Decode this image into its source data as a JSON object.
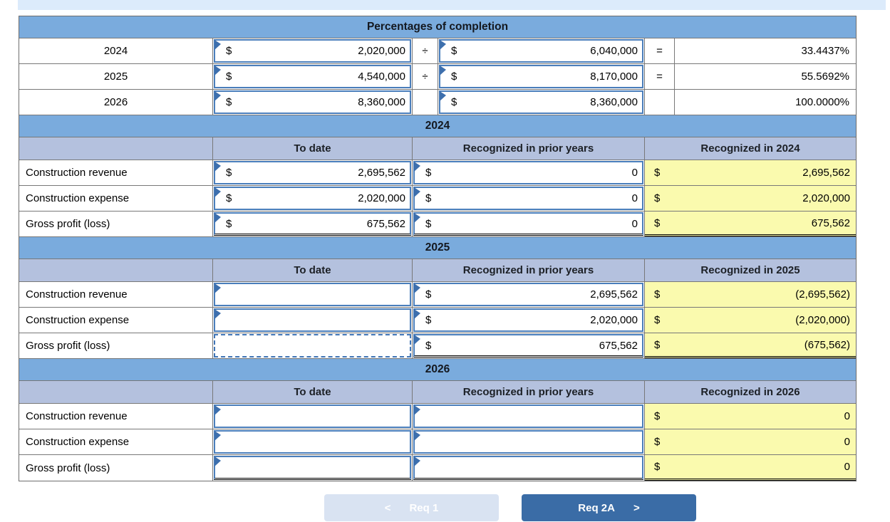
{
  "cur": "$",
  "pct": {
    "title": "Percentages of completion",
    "rows": [
      {
        "year": "2024",
        "num": "2,020,000",
        "op": "÷",
        "den": "6,040,000",
        "eq": "=",
        "pct": "33.4437%"
      },
      {
        "year": "2025",
        "num": "4,540,000",
        "op": "÷",
        "den": "8,170,000",
        "eq": "=",
        "pct": "55.5692%"
      },
      {
        "year": "2026",
        "num": "8,360,000",
        "op": "",
        "den": "8,360,000",
        "eq": "",
        "pct": "100.0000%"
      }
    ]
  },
  "sections": [
    {
      "year": "2024",
      "columns": [
        "To date",
        "Recognized in prior years",
        "Recognized in 2024"
      ],
      "rows": [
        {
          "label": "Construction revenue",
          "to_date": "2,695,562",
          "prior": "0",
          "recognized": "2,695,562"
        },
        {
          "label": "Construction expense",
          "to_date": "2,020,000",
          "prior": "0",
          "recognized": "2,020,000"
        },
        {
          "label": "Gross profit (loss)",
          "to_date": "675,562",
          "prior": "0",
          "recognized": "675,562"
        }
      ]
    },
    {
      "year": "2025",
      "columns": [
        "To date",
        "Recognized in prior years",
        "Recognized in 2025"
      ],
      "rows": [
        {
          "label": "Construction revenue",
          "to_date": "",
          "prior": "2,695,562",
          "recognized": "(2,695,562)"
        },
        {
          "label": "Construction expense",
          "to_date": "",
          "prior": "2,020,000",
          "recognized": "(2,020,000)"
        },
        {
          "label": "Gross profit (loss)",
          "to_date": "",
          "prior": "675,562",
          "recognized": "(675,562)"
        }
      ]
    },
    {
      "year": "2026",
      "columns": [
        "To date",
        "Recognized in prior years",
        "Recognized in 2026"
      ],
      "rows": [
        {
          "label": "Construction revenue",
          "to_date": "",
          "prior": "",
          "recognized": "0"
        },
        {
          "label": "Construction expense",
          "to_date": "",
          "prior": "",
          "recognized": "0"
        },
        {
          "label": "Gross profit (loss)",
          "to_date": "",
          "prior": "",
          "recognized": "0"
        }
      ]
    }
  ],
  "state": {
    "selected_cell": "2025 Gross profit (loss) — To date"
  },
  "buttons": {
    "prev": {
      "chevron": "<",
      "label": "Req 1"
    },
    "next": {
      "label": "Req 2A",
      "chevron": ">"
    }
  },
  "colors": {
    "section_header": "#7aabdd",
    "column_header": "#b4c1de",
    "input_border": "#4a7ebb",
    "answered_flag": "#3d6fad",
    "computed_cell": "#fafaae",
    "top_bar": "#dcebfb",
    "prev_button": "#d9e3f2",
    "next_button": "#3a6ca6"
  }
}
